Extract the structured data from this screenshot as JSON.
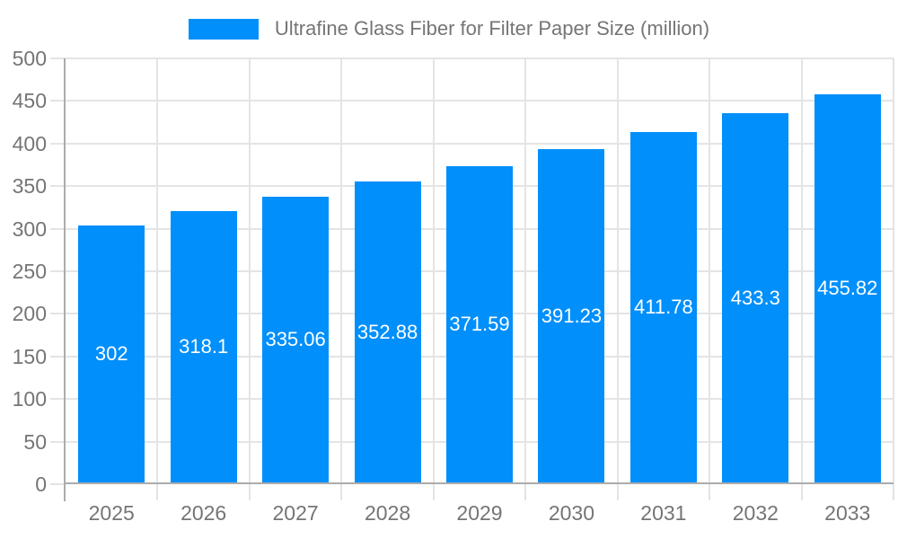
{
  "chart_data": {
    "type": "bar",
    "legend": {
      "label": "Ultrafine Glass Fiber for Filter Paper Size (million)",
      "position": "top"
    },
    "categories": [
      "2025",
      "2026",
      "2027",
      "2028",
      "2029",
      "2030",
      "2031",
      "2032",
      "2033"
    ],
    "values": [
      302,
      318.1,
      335.06,
      352.88,
      371.59,
      391.23,
      411.78,
      433.3,
      455.82
    ],
    "xlabel": "",
    "ylabel": "",
    "ylim": [
      0,
      500
    ],
    "ytick_step": 50,
    "grid": true,
    "value_labels_position": "inside-center",
    "colors": {
      "bar": "#008FFB",
      "bar_label_text": "#FFFFFF",
      "axis_text": "#757575",
      "axis_line": "#ABABAB",
      "gridline": "#E4E4E4",
      "tick": "#E4E4E4"
    }
  }
}
